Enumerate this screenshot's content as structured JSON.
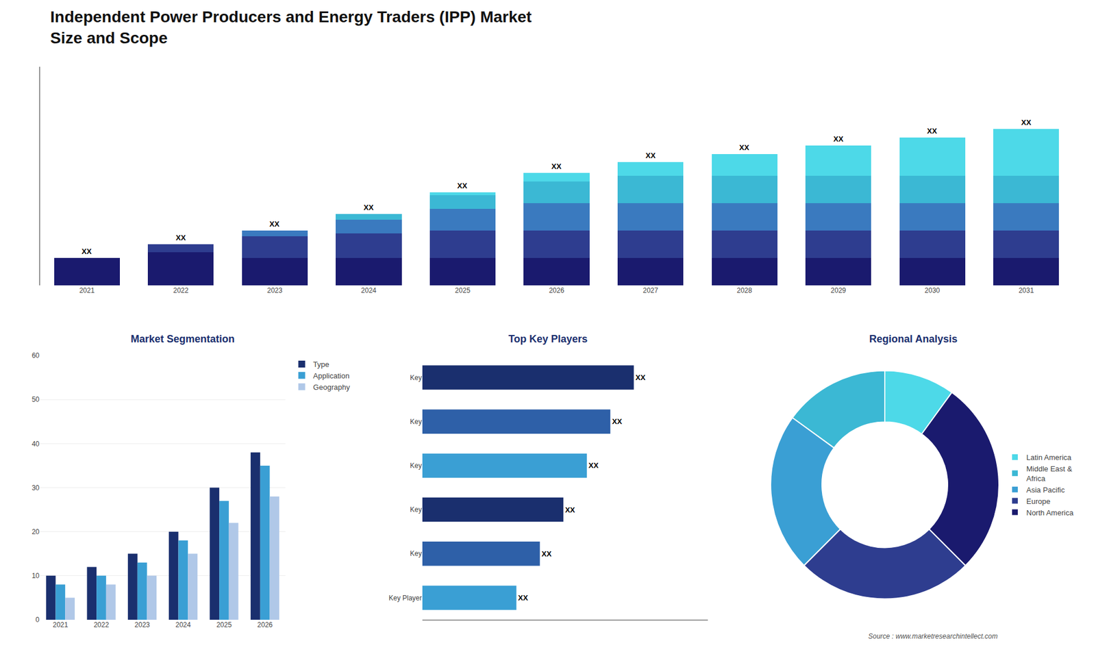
{
  "chart_data": [
    {
      "type": "bar",
      "title": "Independent Power Producers and Energy Traders (IPP) Market",
      "subtitle": "Size and Scope",
      "categories": [
        "2021",
        "2022",
        "2023",
        "2024",
        "2025",
        "2026",
        "2027",
        "2028",
        "2029",
        "2030",
        "2031"
      ],
      "series": [
        {
          "color": "#1a1a6e",
          "values": [
            1.0,
            1.2,
            1.0,
            1.0,
            1.0,
            1.0,
            1.0,
            1.0,
            1.0,
            1.0,
            1.0
          ]
        },
        {
          "color": "#2e3d8f",
          "values": [
            0,
            0.3,
            0.8,
            0.9,
            1.0,
            1.0,
            1.0,
            1.0,
            1.0,
            1.0,
            1.0
          ]
        },
        {
          "color": "#3a7abf",
          "values": [
            0,
            0,
            0.2,
            0.5,
            0.8,
            1.0,
            1.0,
            1.0,
            1.0,
            1.0,
            1.0
          ]
        },
        {
          "color": "#3bb8d4",
          "values": [
            0,
            0,
            0,
            0.2,
            0.5,
            0.8,
            1.0,
            1.0,
            1.0,
            1.0,
            1.0
          ]
        },
        {
          "color": "#4dd9e8",
          "values": [
            0,
            0,
            0,
            0,
            0.1,
            0.3,
            0.5,
            0.8,
            1.1,
            1.4,
            1.7
          ]
        }
      ],
      "stacked": true,
      "value_labels": [
        "XX",
        "XX",
        "XX",
        "XX",
        "XX",
        "XX",
        "XX",
        "XX",
        "XX",
        "XX",
        "XX"
      ],
      "ylim": [
        0,
        7.98
      ],
      "tick_labels": "x",
      "grid": false
    },
    {
      "type": "bar",
      "title": "Market Segmentation",
      "categories": [
        "2021",
        "2022",
        "2023",
        "2024",
        "2025",
        "2026"
      ],
      "series": [
        {
          "name": "Type",
          "color": "#1a2f6e",
          "values": [
            10,
            12,
            15,
            20,
            30,
            38
          ]
        },
        {
          "name": "Application",
          "color": "#3a9fd4",
          "values": [
            8,
            10,
            13,
            18,
            27,
            35
          ]
        },
        {
          "name": "Geography",
          "color": "#b0c8e8",
          "values": [
            5,
            8,
            10,
            15,
            22,
            28
          ]
        }
      ],
      "ylim": [
        0,
        60
      ],
      "yticks": [
        0,
        10,
        20,
        30,
        40,
        50,
        60
      ],
      "grid": true,
      "legend": "upper right"
    },
    {
      "type": "bar",
      "orientation": "horizontal",
      "title": "Top Key Players",
      "categories": [
        "Key",
        "Key",
        "Key",
        "Key",
        "Key",
        "Key Player"
      ],
      "values": [
        9,
        8,
        7,
        6,
        5,
        4
      ],
      "colors": [
        "#1a2f6e",
        "#2e60a8",
        "#3a9fd4",
        "#1a2f6e",
        "#2e60a8",
        "#3a9fd4"
      ],
      "value_labels": [
        "XX",
        "XX",
        "XX",
        "XX",
        "XX",
        "XX"
      ],
      "xlim": [
        0,
        12.15
      ],
      "tick_labels": "y",
      "grid": false
    },
    {
      "type": "donut",
      "title": "Regional Analysis",
      "categories": [
        "Latin America",
        "Middle East &\nAfrica",
        "Asia Pacific",
        "Europe",
        "North America"
      ],
      "values": [
        8,
        12,
        18,
        20,
        22
      ],
      "colors": [
        "#4dd9e8",
        "#3bb8d4",
        "#3a9fd4",
        "#2e3d8f",
        "#1a1a6e"
      ],
      "legend": "right",
      "annotations": [
        "Source : www.marketresearchintellect.com"
      ]
    }
  ]
}
